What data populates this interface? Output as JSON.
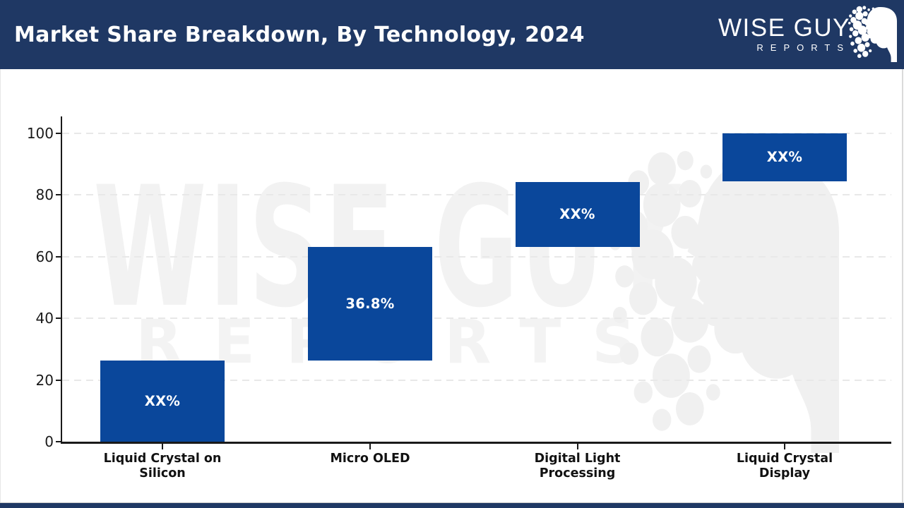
{
  "header": {
    "title": "Market Share Breakdown, By Technology, 2024",
    "logo": {
      "name": "WISE GUY",
      "tagline": "REPORTS"
    }
  },
  "watermark": {
    "name": "WISE GUY",
    "tagline": "REPORTS"
  },
  "chart_data": {
    "type": "bar",
    "subtype": "floating_segment_waterfall",
    "title": "Market Share Breakdown, By Technology, 2024",
    "categories": [
      "Liquid Crystal on Silicon",
      "Micro OLED",
      "Digital Light Processing",
      "Liquid Crystal Display"
    ],
    "category_label_lines": [
      [
        "Liquid Crystal on",
        "Silicon"
      ],
      [
        "Micro OLED"
      ],
      [
        "Digital Light",
        "Processing"
      ],
      [
        "Liquid Crystal",
        "Display"
      ]
    ],
    "series": [
      {
        "name": "Market share (%)",
        "segments": [
          {
            "category": "Liquid Crystal on Silicon",
            "from": 0,
            "to": 26.2,
            "label": "XX%"
          },
          {
            "category": "Micro OLED",
            "from": 26.2,
            "to": 63.0,
            "label": "36.8%"
          },
          {
            "category": "Digital Light Processing",
            "from": 63.2,
            "to": 84.1,
            "label": "XX%"
          },
          {
            "category": "Liquid Crystal Display",
            "from": 84.4,
            "to": 100,
            "label": "XX%"
          }
        ]
      }
    ],
    "xlabel": "",
    "ylabel": "",
    "ylim": [
      0,
      105.5
    ],
    "yticks": [
      0,
      20,
      40,
      60,
      80,
      100
    ],
    "grid": {
      "horizontal": true,
      "style": "dashed",
      "color": "#E8E8E8"
    },
    "legend": null,
    "colors": {
      "bar": "#0A479B",
      "header_background": "#1F3864",
      "value_label": "#FFFFFF",
      "axis": "#1A1A1A"
    }
  }
}
